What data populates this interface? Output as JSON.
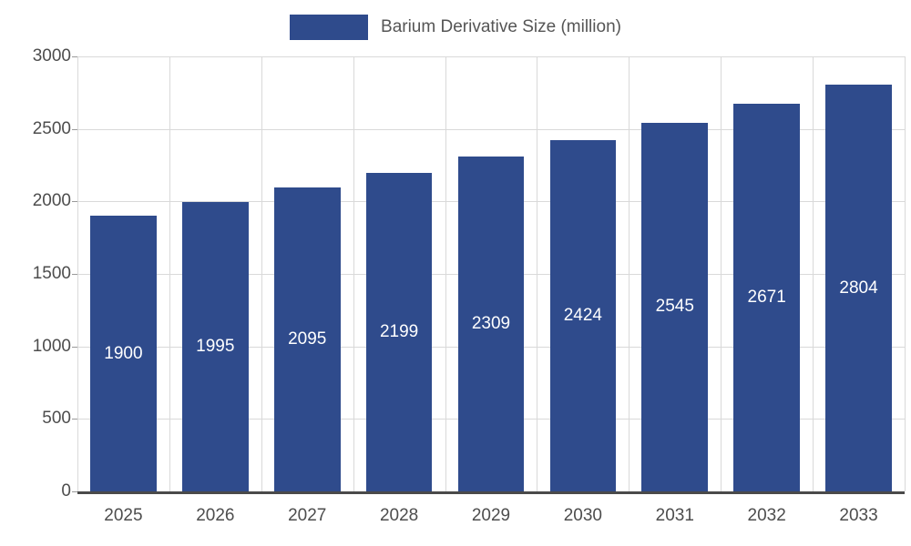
{
  "chart_data": {
    "type": "bar",
    "title": "Barium Derivative Size (million)",
    "legend": {
      "label": "Barium Derivative Size (million)",
      "position": "top"
    },
    "categories": [
      "2025",
      "2026",
      "2027",
      "2028",
      "2029",
      "2030",
      "2031",
      "2032",
      "2033"
    ],
    "values": [
      1900,
      1995,
      2095,
      2199,
      2309,
      2424,
      2545,
      2671,
      2804
    ],
    "xlabel": "",
    "ylabel": "",
    "ylim": [
      0,
      3000
    ],
    "yticks": [
      0,
      500,
      1000,
      1500,
      2000,
      2500,
      3000
    ],
    "grid": true,
    "colors": {
      "bar": "#2F4B8C",
      "bar_label": "#ffffff",
      "gridline": "#d9d9d9",
      "axis_text": "#4d4d4d",
      "legend_text": "#555555"
    }
  }
}
